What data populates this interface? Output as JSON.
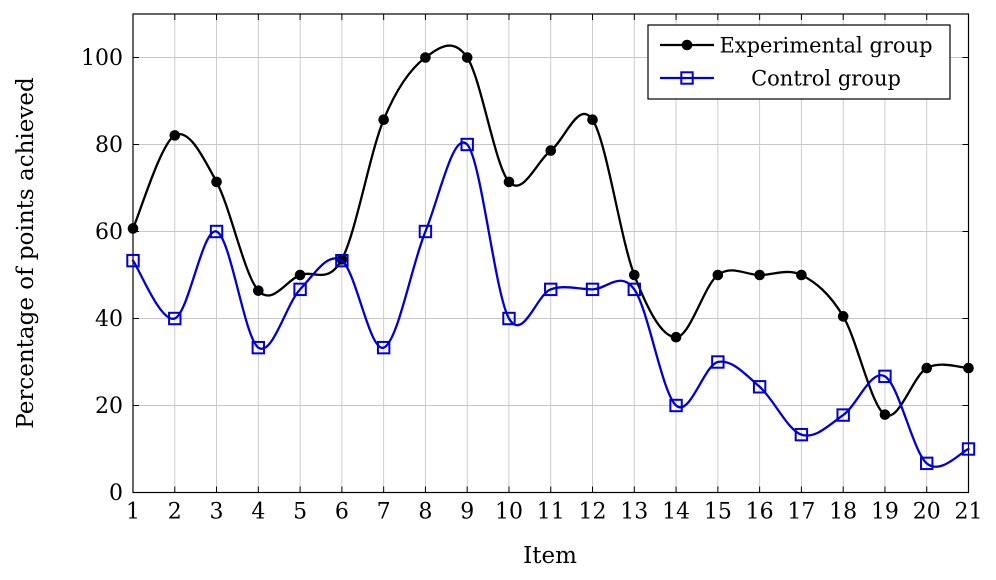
{
  "chart_data": {
    "type": "line",
    "title": "",
    "xlabel": "Item",
    "ylabel": "Percentage of points achieved",
    "x": [
      1,
      2,
      3,
      4,
      5,
      6,
      7,
      8,
      9,
      10,
      11,
      12,
      13,
      14,
      15,
      16,
      17,
      18,
      19,
      20,
      21
    ],
    "xticks": [
      1,
      2,
      3,
      4,
      5,
      6,
      7,
      8,
      9,
      10,
      11,
      12,
      13,
      14,
      15,
      16,
      17,
      18,
      19,
      20,
      21
    ],
    "yticks": [
      0,
      20,
      40,
      60,
      80,
      100
    ],
    "xlim": [
      1,
      21
    ],
    "ylim": [
      0,
      110
    ],
    "grid": true,
    "smooth": true,
    "legend_position": "top-right",
    "series": [
      {
        "name": "Experimental group",
        "color": "#000000",
        "marker": "filled-circle",
        "values": [
          60.7,
          82.1,
          71.4,
          46.4,
          50,
          53.6,
          85.7,
          100,
          100,
          71.4,
          78.6,
          85.7,
          50,
          35.7,
          50,
          50,
          50,
          40.5,
          17.9,
          28.6,
          28.6
        ]
      },
      {
        "name": "Control group",
        "color": "#0000d2",
        "marker": "open-square",
        "values": [
          53.3,
          40,
          60,
          33.3,
          46.7,
          53.3,
          33.3,
          60,
          80,
          40,
          46.7,
          46.7,
          46.7,
          20,
          30,
          24.3,
          13.3,
          17.8,
          26.7,
          6.7,
          10
        ]
      }
    ],
    "colors": {
      "grid": "#c8c8c8",
      "axis": "#000000",
      "background": "#ffffff"
    }
  }
}
